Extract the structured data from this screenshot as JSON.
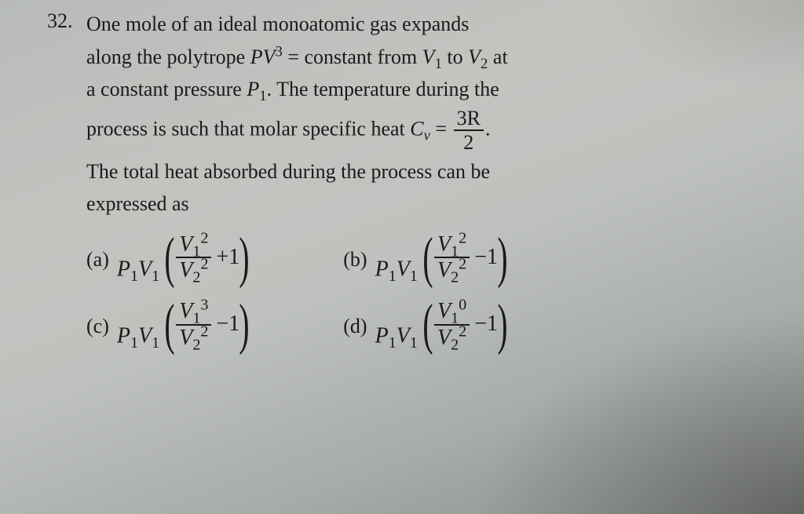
{
  "question": {
    "number": "32.",
    "line1_a": "One mole of an ideal monoatomic gas expands",
    "line2_a": "along the polytrope ",
    "pv3": "PV",
    "pv3_exp": "3",
    "line2_b": " = constant from ",
    "V1": "V",
    "sub1": "1",
    "line2_c": " to ",
    "V2": "V",
    "sub2": "2",
    "line2_d": " at",
    "line3_a": "a constant pressure ",
    "P1": "P",
    "line3_b": ". The temperature during the",
    "line4_a": "process is such that molar specific heat ",
    "Cv": "C",
    "Cv_sub": "v",
    "eq": " = ",
    "frac_num": "3R",
    "frac_den": "2",
    "dot": ".",
    "line5": "The total heat absorbed during the process can be",
    "line6": "expressed as"
  },
  "opt": {
    "a_label": "(a)",
    "b_label": "(b)",
    "c_label": "(c)",
    "d_label": "(d)",
    "P1V1_P": "P",
    "P1V1_1": "1",
    "P1V1_V": "V",
    "a_num_V": "V",
    "a_num_sub": "1",
    "a_num_sup": "2",
    "a_den_V": "V",
    "a_den_sub": "2",
    "a_den_sup": "2",
    "a_tail": "+1",
    "b_tail": "−1",
    "c_num_sup": "3",
    "d_num_sup": "0"
  },
  "style": {
    "text_color": "#1a1a1a",
    "bg_top": "#b8bbb8",
    "bg_bottom": "#888c88",
    "body_fontsize": 26,
    "option_fontsize": 28
  }
}
